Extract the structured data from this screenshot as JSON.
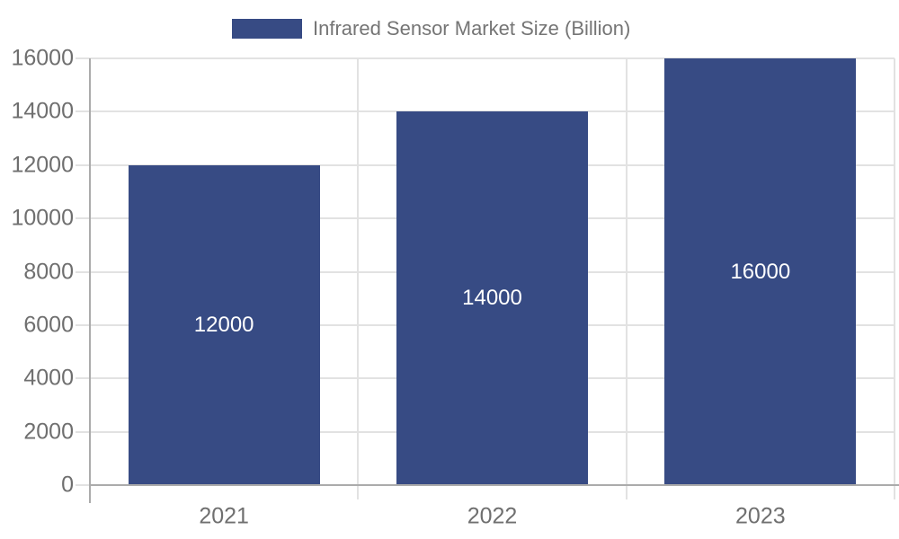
{
  "chart_data": {
    "type": "bar",
    "title": "Infrared Sensor Market Size (Billion)",
    "categories": [
      "2021",
      "2022",
      "2023"
    ],
    "values": [
      12000,
      14000,
      16000
    ],
    "bar_value_labels": [
      "12000",
      "14000",
      "16000"
    ],
    "series": [
      {
        "name": "Infrared Sensor Market Size (Billion)",
        "values": [
          12000,
          14000,
          16000
        ]
      }
    ],
    "xlabel": "",
    "ylabel": "",
    "ylim": [
      0,
      16000
    ],
    "yticks": [
      0,
      2000,
      4000,
      6000,
      8000,
      10000,
      12000,
      14000,
      16000
    ],
    "grid": true,
    "legend_position": "top-center",
    "colors": {
      "bar": "#374B84",
      "grid": "#e2e2e2",
      "axis": "#ababab",
      "tick_label_text": "#6f6f6f",
      "legend_text": "#757575",
      "bar_label_text": "#ffffff",
      "background": "#ffffff"
    }
  }
}
